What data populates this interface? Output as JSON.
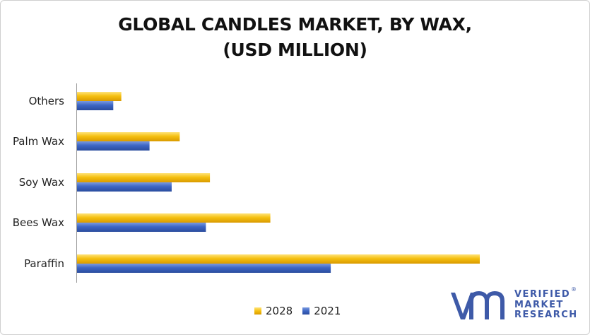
{
  "chart_data": {
    "type": "bar",
    "orientation": "horizontal",
    "title": "GLOBAL CANDLES MARKET, BY WAX, (USD MILLION)",
    "title_lines": [
      "GLOBAL CANDLES MARKET, BY WAX,",
      "(USD MILLION)"
    ],
    "categories": [
      "Others",
      "Palm Wax",
      "Soy Wax",
      "Bees Wax",
      "Paraffin"
    ],
    "series": [
      {
        "name": "2028",
        "color": "#f2b705",
        "values": [
          11,
          25.5,
          33,
          48,
          100
        ]
      },
      {
        "name": "2021",
        "color": "#3d66c4",
        "values": [
          9,
          18,
          23.5,
          32,
          63
        ]
      }
    ],
    "xlim": [
      0,
      100
    ],
    "grid": false,
    "legend_position": "bottom",
    "xlabel": "",
    "ylabel": ""
  },
  "logo": {
    "name": "VMR",
    "lines": [
      "VERIFIED",
      "MARKET",
      "RESEARCH"
    ],
    "registered": "®"
  },
  "colors": {
    "accent": "#3e5aa8"
  }
}
